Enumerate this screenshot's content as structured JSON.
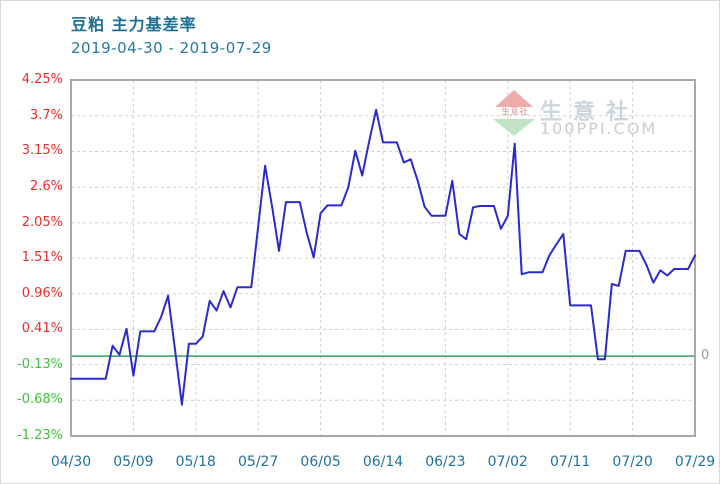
{
  "header": {
    "title": "豆粕 主力基差率",
    "subtitle": "2019-04-30 - 2019-07-29"
  },
  "watermark": {
    "brand": "生意社",
    "badge": "生意社",
    "domain": "100PPI.COM"
  },
  "chart_data": {
    "type": "line",
    "title": "豆粕 主力基差率",
    "subtitle_date_range": "2019-04-30 - 2019-07-29",
    "series_name": "主力基差率",
    "unit": "%",
    "x_tick_labels": [
      "04/30",
      "05/09",
      "05/18",
      "05/27",
      "06/05",
      "06/14",
      "06/23",
      "07/02",
      "07/11",
      "07/20",
      "07/29"
    ],
    "y_tick_labels": [
      "4.25%",
      "3.7%",
      "3.15%",
      "2.6%",
      "2.05%",
      "1.51%",
      "0.96%",
      "0.41%",
      "-0.13%",
      "-0.68%",
      "-1.23%"
    ],
    "y_tick_values": [
      4.25,
      3.7,
      3.15,
      2.6,
      2.05,
      1.51,
      0.96,
      0.41,
      -0.13,
      -0.68,
      -1.23
    ],
    "ylim": [
      -1.23,
      4.25
    ],
    "grid": true,
    "legend_position": "none",
    "zero_line": {
      "value": 0,
      "label": "0"
    },
    "values": [
      -0.35,
      -0.35,
      -0.35,
      -0.35,
      -0.35,
      -0.35,
      0.16,
      0.02,
      0.42,
      -0.3,
      0.38,
      0.38,
      0.38,
      0.6,
      0.93,
      0.1,
      -0.75,
      0.19,
      0.19,
      0.3,
      0.85,
      0.7,
      1.0,
      0.75,
      1.06,
      1.06,
      1.06,
      2.0,
      2.93,
      2.3,
      1.62,
      2.37,
      2.37,
      2.37,
      1.9,
      1.52,
      2.2,
      2.32,
      2.32,
      2.32,
      2.6,
      3.16,
      2.78,
      3.3,
      3.79,
      3.29,
      3.29,
      3.29,
      2.98,
      3.03,
      2.7,
      2.3,
      2.16,
      2.16,
      2.16,
      2.7,
      1.88,
      1.8,
      2.29,
      2.31,
      2.31,
      2.31,
      1.96,
      2.16,
      3.27,
      1.26,
      1.29,
      1.29,
      1.29,
      1.55,
      1.72,
      1.88,
      0.78,
      0.78,
      0.78,
      0.78,
      -0.05,
      -0.05,
      1.11,
      1.08,
      1.62,
      1.62,
      1.62,
      1.4,
      1.13,
      1.32,
      1.24,
      1.34,
      1.34,
      1.34,
      1.55
    ],
    "colors": {
      "line": "#2b2bcc",
      "zero_line": "#339966",
      "grid": "#cfcfcf",
      "frame": "#a8a8a8",
      "tick_positive": "#ee2c2c",
      "tick_negative": "#3cc23c",
      "x_label": "#2272a0",
      "title": "#1e6f96",
      "subtitle": "#2779a0",
      "zero_label": "#9a9a9a"
    }
  }
}
